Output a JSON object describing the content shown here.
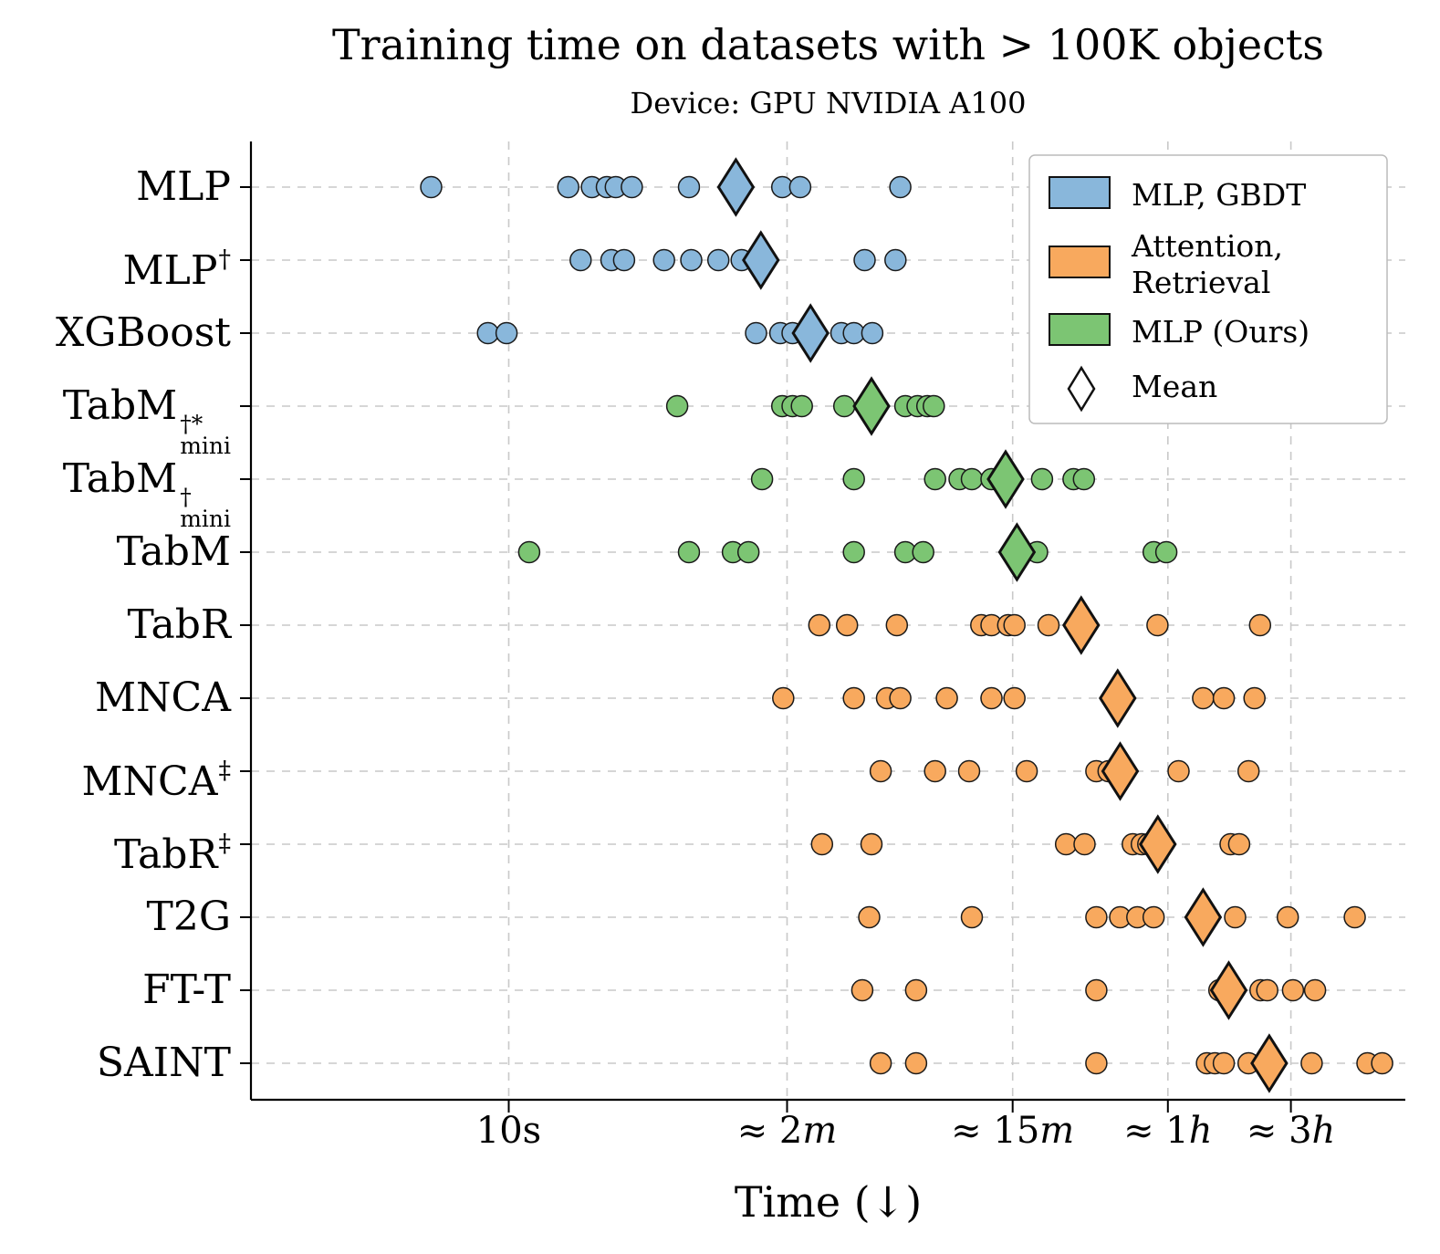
{
  "figure": {
    "title": "Training time on datasets with > 100K objects",
    "subtitle": "Device: GPU NVIDIA A100",
    "xlabel": "Time (↓)"
  },
  "colors": {
    "background": "#ffffff",
    "grid": "#c9c9c9",
    "axis": "#000000",
    "marker_edge": "#1a1a1a"
  },
  "chart_data": {
    "type": "scatter",
    "title": "Training time on datasets with > 100K objects",
    "subtitle": "Device: GPU NVIDIA A100",
    "xlabel": "Time (↓)",
    "x_scale": "log",
    "x_unit": "seconds",
    "x_domain": [
      1,
      30000
    ],
    "grid": true,
    "legend_position": "upper right",
    "x_ticks": [
      {
        "seconds": 10,
        "label": "10s"
      },
      {
        "seconds": 120,
        "label": "≈ 2m"
      },
      {
        "seconds": 900,
        "label": "≈ 15m"
      },
      {
        "seconds": 3600,
        "label": "≈ 1h"
      },
      {
        "seconds": 10800,
        "label": "≈ 3h"
      }
    ],
    "groups": {
      "mlp_gbdt": {
        "label": "MLP, GBDT",
        "color": "#89b7db"
      },
      "attention_retrieval": {
        "label": "Attention, Retrieval",
        "color": "#f8a95e"
      },
      "mlp_ours": {
        "label": "MLP (Ours)",
        "color": "#7cc573"
      }
    },
    "mean_marker_label": "Mean",
    "rows": [
      {
        "label": {
          "base": "MLP",
          "sup": "",
          "sub": ""
        },
        "group": "mlp_gbdt",
        "points_seconds": [
          5,
          17,
          21,
          24,
          26,
          30,
          50,
          115,
          135,
          330
        ],
        "mean_seconds": 76
      },
      {
        "label": {
          "base": "MLP",
          "sup": "†",
          "sub": ""
        },
        "group": "mlp_gbdt",
        "points_seconds": [
          19,
          25,
          28,
          40,
          51,
          65,
          80,
          240,
          316
        ],
        "mean_seconds": 95
      },
      {
        "label": {
          "base": "XGBoost",
          "sup": "",
          "sub": ""
        },
        "group": "mlp_gbdt",
        "points_seconds": [
          8.3,
          9.8,
          91,
          113,
          126,
          195,
          218,
          257
        ],
        "mean_seconds": 148
      },
      {
        "label": {
          "base": "TabM",
          "sup": "†*",
          "sub": "mini"
        },
        "group": "mlp_ours",
        "points_seconds": [
          45,
          115,
          126,
          137,
          200,
          345,
          385,
          420,
          445
        ],
        "mean_seconds": 255
      },
      {
        "label": {
          "base": "TabM",
          "sup": "†",
          "sub": "mini"
        },
        "group": "mlp_ours",
        "points_seconds": [
          96,
          218,
          450,
          560,
          625,
          745,
          1170,
          1550,
          1700
        ],
        "mean_seconds": 845
      },
      {
        "label": {
          "base": "TabM",
          "sup": "",
          "sub": ""
        },
        "group": "mlp_ours",
        "points_seconds": [
          12,
          50,
          74,
          85,
          218,
          345,
          405,
          1120,
          3170,
          3550
        ],
        "mean_seconds": 935
      },
      {
        "label": {
          "base": "TabR",
          "sup": "",
          "sub": ""
        },
        "group": "attention_retrieval",
        "points_seconds": [
          160,
          205,
          320,
          680,
          745,
          865,
          915,
          1240,
          3280,
          8200
        ],
        "mean_seconds": 1660
      },
      {
        "label": {
          "base": "MNCA",
          "sup": "",
          "sub": ""
        },
        "group": "attention_retrieval",
        "points_seconds": [
          116,
          218,
          293,
          330,
          500,
          745,
          915,
          4930,
          5930,
          7800
        ],
        "mean_seconds": 2300
      },
      {
        "label": {
          "base": "MNCA",
          "sup": "‡",
          "sub": ""
        },
        "group": "attention_retrieval",
        "points_seconds": [
          277,
          450,
          610,
          1020,
          1900,
          2120,
          3960,
          7400
        ],
        "mean_seconds": 2350
      },
      {
        "label": {
          "base": "TabR",
          "sup": "‡",
          "sub": ""
        },
        "group": "attention_retrieval",
        "points_seconds": [
          164,
          255,
          1450,
          1710,
          2630,
          2850,
          3020,
          6300,
          6800
        ],
        "mean_seconds": 3290
      },
      {
        "label": {
          "base": "T2G",
          "sup": "",
          "sub": ""
        },
        "group": "attention_retrieval",
        "points_seconds": [
          250,
          625,
          1900,
          2350,
          2740,
          3170,
          6560,
          10500,
          19100
        ],
        "mean_seconds": 4930
      },
      {
        "label": {
          "base": "FT-T",
          "sup": "",
          "sub": ""
        },
        "group": "attention_retrieval",
        "points_seconds": [
          235,
          380,
          1900,
          5700,
          8230,
          8740,
          11000,
          13400
        ],
        "mean_seconds": 6200
      },
      {
        "label": {
          "base": "SAINT",
          "sup": "",
          "sub": ""
        },
        "group": "attention_retrieval",
        "points_seconds": [
          277,
          380,
          1900,
          5100,
          5480,
          5930,
          7400,
          13000,
          21400,
          24400
        ],
        "mean_seconds": 8900
      }
    ]
  },
  "legend": {
    "items": [
      {
        "swatch": "rect",
        "group": "mlp_gbdt",
        "lines": [
          "MLP, GBDT"
        ]
      },
      {
        "swatch": "rect",
        "group": "attention_retrieval",
        "lines": [
          "Attention,",
          "Retrieval"
        ]
      },
      {
        "swatch": "rect",
        "group": "mlp_ours",
        "lines": [
          "MLP (Ours)"
        ]
      },
      {
        "swatch": "diamond",
        "color": "#ffffff",
        "lines": [
          "Mean"
        ]
      }
    ]
  }
}
